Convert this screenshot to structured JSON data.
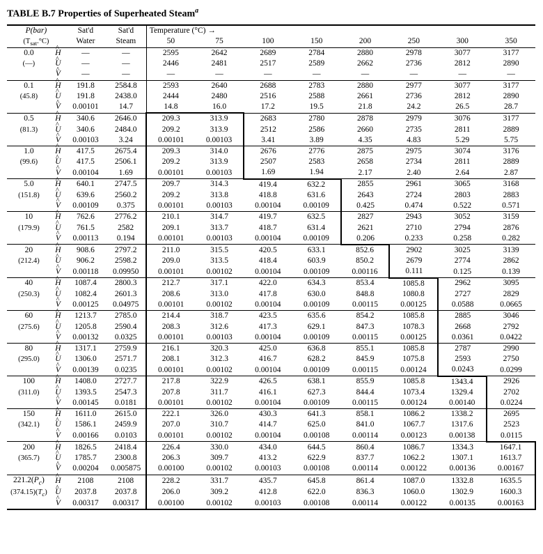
{
  "title_label": "TABLE B.7   Properties of Superheated Steam",
  "title_sup": "a",
  "header": {
    "p_bar": "P(bar)",
    "tsat": "(T",
    "tsat_sub": "sat",
    "tsat_rest": ",°C)",
    "satd_water": "Sat'd\nWater",
    "satd_steam": "Sat'd\nSteam",
    "temp_header": "Temperature (°C) →",
    "temps": [
      "50",
      "75",
      "100",
      "150",
      "200",
      "250",
      "300",
      "350"
    ]
  },
  "prop_syms": [
    "H",
    "U",
    "V"
  ],
  "blocks": [
    {
      "p": "0.0",
      "t": "(—)",
      "rows": [
        [
          "—",
          "—",
          "2595",
          "2642",
          "2689",
          "2784",
          "2880",
          "2978",
          "3077",
          "3177"
        ],
        [
          "—",
          "—",
          "2446",
          "2481",
          "2517",
          "2589",
          "2662",
          "2736",
          "2812",
          "2890"
        ],
        [
          "—",
          "—",
          "—",
          "—",
          "—",
          "—",
          "—",
          "—",
          "—",
          "—"
        ]
      ]
    },
    {
      "p": "0.1",
      "t": "(45.8)",
      "rows": [
        [
          "191.8",
          "2584.8",
          "2593",
          "2640",
          "2688",
          "2783",
          "2880",
          "2977",
          "3077",
          "3177"
        ],
        [
          "191.8",
          "2438.0",
          "2444",
          "2480",
          "2516",
          "2588",
          "2661",
          "2736",
          "2812",
          "2890"
        ],
        [
          "0.00101",
          "14.7",
          "14.8",
          "16.0",
          "17.2",
          "19.5",
          "21.8",
          "24.2",
          "26.5",
          "28.7"
        ]
      ]
    },
    {
      "p": "0.5",
      "t": "(81.3)",
      "step": 2,
      "rows": [
        [
          "340.6",
          "2646.0",
          "209.3",
          "313.9",
          "2683",
          "2780",
          "2878",
          "2979",
          "3076",
          "3177"
        ],
        [
          "340.6",
          "2484.0",
          "209.2",
          "313.9",
          "2512",
          "2586",
          "2660",
          "2735",
          "2811",
          "2889"
        ],
        [
          "0.00103",
          "3.24",
          "0.00101",
          "0.00103",
          "3.41",
          "3.89",
          "4.35",
          "4.83",
          "5.29",
          "5.75"
        ]
      ]
    },
    {
      "p": "1.0",
      "t": "(99.6)",
      "step": 2,
      "rows": [
        [
          "417.5",
          "2675.4",
          "209.3",
          "314.0",
          "2676",
          "2776",
          "2875",
          "2975",
          "3074",
          "3176"
        ],
        [
          "417.5",
          "2506.1",
          "209.2",
          "313.9",
          "2507",
          "2583",
          "2658",
          "2734",
          "2811",
          "2889"
        ],
        [
          "0.00104",
          "1.69",
          "0.00101",
          "0.00103",
          "1.69",
          "1.94",
          "2.17",
          "2.40",
          "2.64",
          "2.87"
        ]
      ]
    },
    {
      "p": "5.0",
      "t": "(151.8)",
      "step": 4,
      "rows": [
        [
          "640.1",
          "2747.5",
          "209.7",
          "314.3",
          "419.4",
          "632.2",
          "2855",
          "2961",
          "3065",
          "3168"
        ],
        [
          "639.6",
          "2560.2",
          "209.2",
          "313.8",
          "418.8",
          "631.6",
          "2643",
          "2724",
          "2803",
          "2883"
        ],
        [
          "0.00109",
          "0.375",
          "0.00101",
          "0.00103",
          "0.00104",
          "0.00109",
          "0.425",
          "0.474",
          "0.522",
          "0.571"
        ]
      ]
    },
    {
      "p": "10",
      "t": "(179.9)",
      "step": 4,
      "rows": [
        [
          "762.6",
          "2776.2",
          "210.1",
          "314.7",
          "419.7",
          "632.5",
          "2827",
          "2943",
          "3052",
          "3159"
        ],
        [
          "761.5",
          "2582",
          "209.1",
          "313.7",
          "418.7",
          "631.4",
          "2621",
          "2710",
          "2794",
          "2876"
        ],
        [
          "0.00113",
          "0.194",
          "0.00101",
          "0.00103",
          "0.00104",
          "0.00109",
          "0.206",
          "0.233",
          "0.258",
          "0.282"
        ]
      ]
    },
    {
      "p": "20",
      "t": "(212.4)",
      "step": 5,
      "rows": [
        [
          "908.6",
          "2797.2",
          "211.0",
          "315.5",
          "420.5",
          "633.1",
          "852.6",
          "2902",
          "3025",
          "3139"
        ],
        [
          "906.2",
          "2598.2",
          "209.0",
          "313.5",
          "418.4",
          "603.9",
          "850.2",
          "2679",
          "2774",
          "2862"
        ],
        [
          "0.00118",
          "0.09950",
          "0.00101",
          "0.00102",
          "0.00104",
          "0.00109",
          "0.00116",
          "0.111",
          "0.125",
          "0.139"
        ]
      ]
    },
    {
      "p": "40",
      "t": "(250.3)",
      "step": 6,
      "rows": [
        [
          "1087.4",
          "2800.3",
          "212.7",
          "317.1",
          "422.0",
          "634.3",
          "853.4",
          "1085.8",
          "2962",
          "3095"
        ],
        [
          "1082.4",
          "2601.3",
          "208.6",
          "313.0",
          "417.8",
          "630.0",
          "848.8",
          "1080.8",
          "2727",
          "2829"
        ],
        [
          "0.00125",
          "0.04975",
          "0.00101",
          "0.00102",
          "0.00104",
          "0.00109",
          "0.00115",
          "0.00125",
          "0.0588",
          "0.0665"
        ]
      ]
    },
    {
      "p": "60",
      "t": "(275.6)",
      "step": 6,
      "rows": [
        [
          "1213.7",
          "2785.0",
          "214.4",
          "318.7",
          "423.5",
          "635.6",
          "854.2",
          "1085.8",
          "2885",
          "3046"
        ],
        [
          "1205.8",
          "2590.4",
          "208.3",
          "312.6",
          "417.3",
          "629.1",
          "847.3",
          "1078.3",
          "2668",
          "2792"
        ],
        [
          "0.00132",
          "0.0325",
          "0.00101",
          "0.00103",
          "0.00104",
          "0.00109",
          "0.00115",
          "0.00125",
          "0.0361",
          "0.0422"
        ]
      ]
    },
    {
      "p": "80",
      "t": "(295.0)",
      "step": 6,
      "rows": [
        [
          "1317.1",
          "2759.9",
          "216.1",
          "320.3",
          "425.0",
          "636.8",
          "855.1",
          "1085.8",
          "2787",
          "2990"
        ],
        [
          "1306.0",
          "2571.7",
          "208.1",
          "312.3",
          "416.7",
          "628.2",
          "845.9",
          "1075.8",
          "2593",
          "2750"
        ],
        [
          "0.00139",
          "0.0235",
          "0.00101",
          "0.00102",
          "0.00104",
          "0.00109",
          "0.00115",
          "0.00124",
          "0.0243",
          "0.0299"
        ]
      ]
    },
    {
      "p": "100",
      "t": "(311.0)",
      "step": 7,
      "rows": [
        [
          "1408.0",
          "2727.7",
          "217.8",
          "322.9",
          "426.5",
          "638.1",
          "855.9",
          "1085.8",
          "1343.4",
          "2926"
        ],
        [
          "1393.5",
          "2547.3",
          "207.8",
          "311.7",
          "416.1",
          "627.3",
          "844.4",
          "1073.4",
          "1329.4",
          "2702"
        ],
        [
          "0.00145",
          "0.0181",
          "0.00101",
          "0.00102",
          "0.00104",
          "0.00109",
          "0.00115",
          "0.00124",
          "0.00140",
          "0.0224"
        ]
      ]
    },
    {
      "p": "150",
      "t": "(342.1)",
      "step": 7,
      "rows": [
        [
          "1611.0",
          "2615.0",
          "222.1",
          "326.0",
          "430.3",
          "641.3",
          "858.1",
          "1086.2",
          "1338.2",
          "2695"
        ],
        [
          "1586.1",
          "2459.9",
          "207.0",
          "310.7",
          "414.7",
          "625.0",
          "841.0",
          "1067.7",
          "1317.6",
          "2523"
        ],
        [
          "0.00166",
          "0.0103",
          "0.00101",
          "0.00102",
          "0.00104",
          "0.00108",
          "0.00114",
          "0.00123",
          "0.00138",
          "0.0115"
        ]
      ]
    },
    {
      "p": "200",
      "t": "(365.7)",
      "step": 8,
      "rows": [
        [
          "1826.5",
          "2418.4",
          "226.4",
          "330.0",
          "434.0",
          "644.5",
          "860.4",
          "1086.7",
          "1334.3",
          "1647.1"
        ],
        [
          "1785.7",
          "2300.8",
          "206.3",
          "309.7",
          "413.2",
          "622.9",
          "837.7",
          "1062.2",
          "1307.1",
          "1613.7"
        ],
        [
          "0.00204",
          "0.005875",
          "0.00100",
          "0.00102",
          "0.00103",
          "0.00108",
          "0.00114",
          "0.00122",
          "0.00136",
          "0.00167"
        ]
      ]
    },
    {
      "p": "221.2(P_c)",
      "t": "(374.15)(T_c)",
      "step": 8,
      "rows": [
        [
          "2108",
          "2108",
          "228.2",
          "331.7",
          "435.7",
          "645.8",
          "861.4",
          "1087.0",
          "1332.8",
          "1635.5"
        ],
        [
          "2037.8",
          "2037.8",
          "206.0",
          "309.2",
          "412.8",
          "622.0",
          "836.3",
          "1060.0",
          "1302.9",
          "1600.3"
        ],
        [
          "0.00317",
          "0.00317",
          "0.00100",
          "0.00102",
          "0.00103",
          "0.00108",
          "0.00114",
          "0.00122",
          "0.00135",
          "0.00163"
        ]
      ]
    }
  ]
}
